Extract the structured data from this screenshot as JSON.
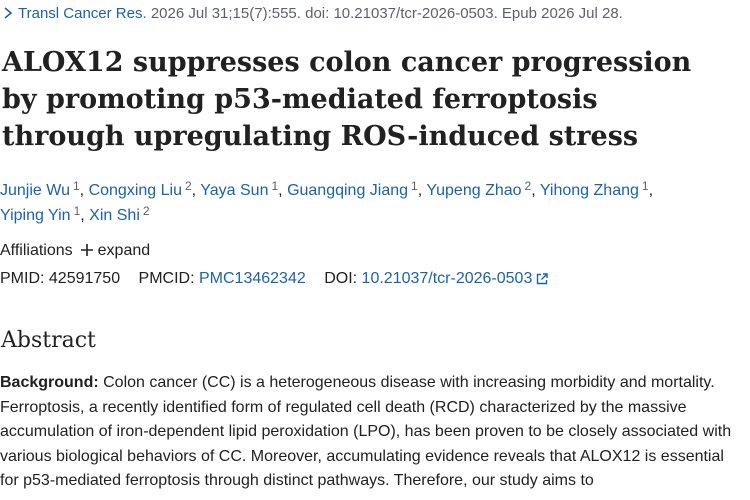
{
  "citation": {
    "journal": "Transl Cancer Res.",
    "details": "2026 Jul 31;15(7):555. doi: 10.21037/tcr-2026-0503. Epub 2026 Jul 28."
  },
  "title": "ALOX12 suppresses colon cancer progression by promoting p53-mediated ferroptosis through upregulating ROS-induced stress",
  "authors_separator": ",",
  "authors": [
    {
      "name": "Junjie Wu",
      "affiliation": "1"
    },
    {
      "name": "Congxing Liu",
      "affiliation": "2"
    },
    {
      "name": "Yaya Sun",
      "affiliation": "1"
    },
    {
      "name": "Guangqing Jiang",
      "affiliation": "1"
    },
    {
      "name": "Yupeng Zhao",
      "affiliation": "2"
    },
    {
      "name": "Yihong Zhang",
      "affiliation": "1"
    },
    {
      "name": "Yiping Yin",
      "affiliation": "1"
    },
    {
      "name": "Xin Shi",
      "affiliation": "2"
    }
  ],
  "affiliations": {
    "label": "Affiliations",
    "toggle": "expand"
  },
  "identifiers": {
    "pmid_label": "PMID:",
    "pmid": "42591750",
    "pmcid_label": "PMCID:",
    "pmcid": "PMC13462342",
    "doi_label": "DOI:",
    "doi": "10.21037/tcr-2026-0503"
  },
  "abstract": {
    "heading": "Abstract",
    "label": "Background:",
    "text": "Colon cancer (CC) is a heterogeneous disease with increasing morbidity and mortality. Ferroptosis, a recently identified form of regulated cell death (RCD) characterized by the massive accumulation of iron-dependent lipid peroxidation (LPO), has been proven to be closely associated with various biological behaviors of CC. Moreover, accumulating evidence reveals that ALOX12 is essential for p53-mediated ferroptosis through distinct pathways. Therefore, our study aims to"
  }
}
